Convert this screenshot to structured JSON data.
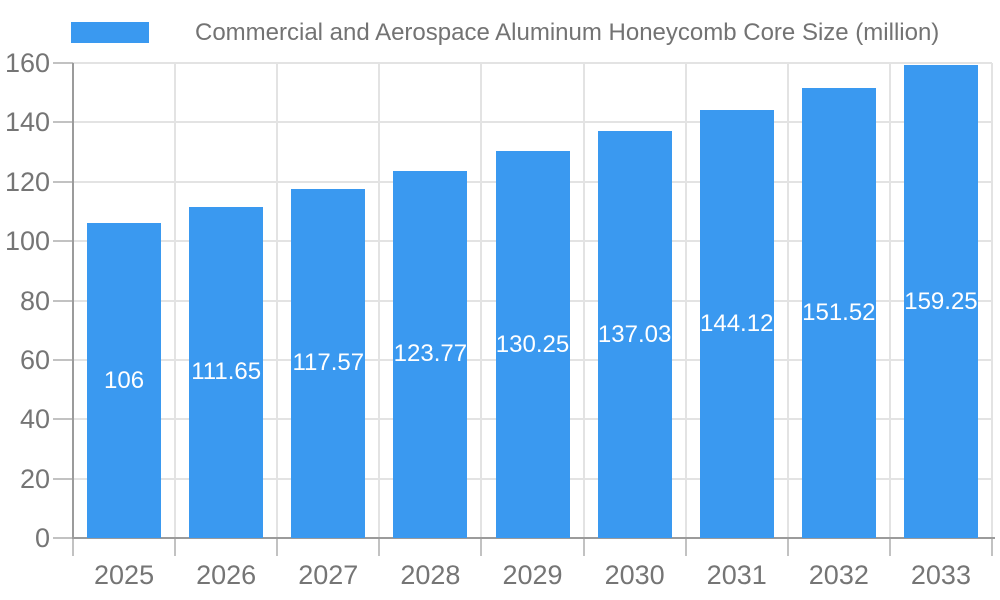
{
  "legend": {
    "label": "Commercial and Aerospace Aluminum Honeycomb Core Size (million)"
  },
  "chart_data": {
    "type": "bar",
    "title": "Commercial and Aerospace Aluminum Honeycomb Core Size (million)",
    "categories": [
      "2025",
      "2026",
      "2027",
      "2028",
      "2029",
      "2030",
      "2031",
      "2032",
      "2033"
    ],
    "values": [
      106,
      111.65,
      117.57,
      123.77,
      130.25,
      137.03,
      144.12,
      151.52,
      159.25
    ],
    "value_labels": [
      "106",
      "111.65",
      "117.57",
      "123.77",
      "130.25",
      "137.03",
      "144.12",
      "151.52",
      "159.25"
    ],
    "xlabel": "",
    "ylabel": "",
    "ylim": [
      0,
      160
    ],
    "ytick_step": 20,
    "yticks": [
      0,
      20,
      40,
      60,
      80,
      100,
      120,
      140,
      160
    ],
    "grid": true,
    "legend_position": "top-left",
    "colors": {
      "bar": "#3A99F0",
      "grid": "#e3e3e3",
      "axis": "#9b9b9b",
      "tick": "#c2c2c2",
      "axis_label": "#757575",
      "title": "#737373",
      "value_label": "#ffffff",
      "background": "#ffffff"
    }
  }
}
